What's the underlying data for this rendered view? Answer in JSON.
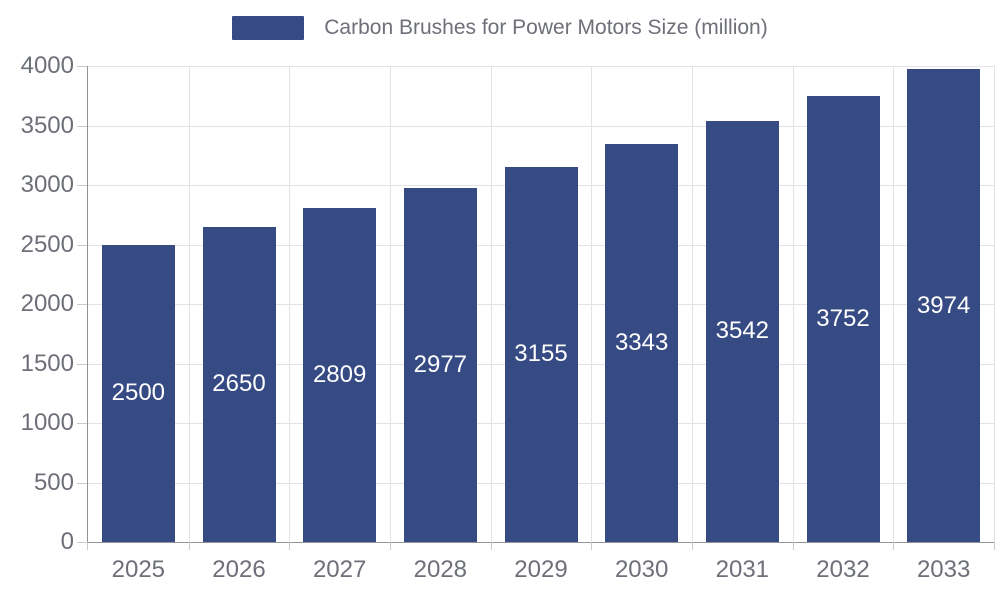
{
  "chart_data": {
    "type": "bar",
    "title": "Carbon Brushes for Power Motors Size (million)",
    "series_name": "Carbon Brushes for Power Motors Size (million)",
    "categories": [
      "2025",
      "2026",
      "2027",
      "2028",
      "2029",
      "2030",
      "2031",
      "2032",
      "2033"
    ],
    "values": [
      2500,
      2650,
      2809,
      2977,
      3155,
      3343,
      3542,
      3752,
      3974
    ],
    "xlabel": "",
    "ylabel": "",
    "ylim": [
      0,
      4000
    ],
    "ytick_step": 500,
    "yticks": [
      "0",
      "500",
      "1000",
      "1500",
      "2000",
      "2500",
      "3000",
      "3500",
      "4000"
    ],
    "grid": true,
    "legend_position": "top-center",
    "value_labels": "inside-middle",
    "colors": {
      "bar": "#364A84",
      "value_label": "#FFFFFF",
      "axis_label": "#6E7079",
      "legend_label": "#6E7079",
      "gridline": "#E2E2E8",
      "axis_line": "#909295",
      "tick": "#C9C9CE",
      "background": "#FFFFFF"
    }
  }
}
